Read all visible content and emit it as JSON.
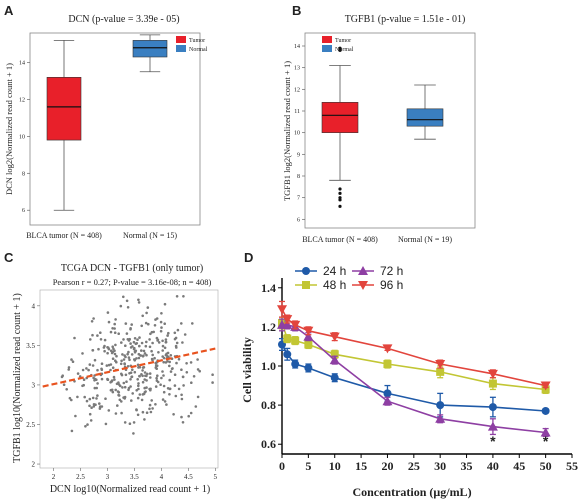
{
  "chart_data": [
    {
      "panel": "A",
      "type": "box",
      "title": "DCN (p-value = 3.39e - 05)",
      "ylabel": "DCN log2(Normalized read count + 1)",
      "categories": [
        "BLCA tumor (N = 408)",
        "Normal (N = 15)"
      ],
      "legend": [
        "Tumor",
        "Normal"
      ],
      "legend_position": "top-right",
      "yticks": [
        6,
        8,
        10,
        12,
        14
      ],
      "ylim": [
        5.2,
        15.6
      ],
      "colors": [
        "#e8202a",
        "#3a7fc1"
      ],
      "boxes": [
        {
          "min": 6.0,
          "q1": 9.8,
          "median": 11.6,
          "q3": 13.2,
          "max": 15.2
        },
        {
          "min": 13.5,
          "q1": 14.3,
          "median": 14.8,
          "q3": 15.2,
          "max": 15.5
        }
      ]
    },
    {
      "panel": "B",
      "type": "box",
      "title": "TGFB1 (p-value = 1.51e - 01)",
      "ylabel": "TGFB1 log2(Normalized read count + 1)",
      "categories": [
        "BLCA tumor (N = 408)",
        "Normal (N = 19)"
      ],
      "legend": [
        "Tumor",
        "Normal"
      ],
      "legend_position": "top-left",
      "yticks": [
        6,
        7,
        8,
        9,
        10,
        11,
        12,
        13,
        14
      ],
      "ylim": [
        5.6,
        14.6
      ],
      "colors": [
        "#e8202a",
        "#3a7fc1"
      ],
      "boxes": [
        {
          "min": 7.8,
          "q1": 10.0,
          "median": 10.8,
          "q3": 11.4,
          "max": 13.1,
          "outliers": [
            13.8,
            13.9,
            7.4,
            7.2,
            7.0,
            6.9,
            6.6
          ]
        },
        {
          "min": 9.7,
          "q1": 10.3,
          "median": 10.6,
          "q3": 11.1,
          "max": 12.2,
          "outliers": []
        }
      ]
    },
    {
      "panel": "C",
      "type": "scatter",
      "title": "TCGA DCN - TGFB1 (only tumor)",
      "subtitle": "Pearson r = 0.27; P-value = 3.16e-08; n = 408)",
      "xlabel": "DCN log10(Normalized read count + 1)",
      "ylabel": "TGFB1 log10(Normalized read count + 1)",
      "xticks": [
        "2",
        "2.5",
        "3",
        "3.5",
        "4",
        "4.5",
        "5"
      ],
      "yticks": [
        "2",
        "2.5",
        "3",
        "3.5",
        "4"
      ],
      "xlim": [
        1.75,
        5.05
      ],
      "ylim": [
        1.95,
        4.2
      ],
      "n_points": 408,
      "fit_line": {
        "x": [
          1.8,
          5.0
        ],
        "y": [
          2.98,
          3.46
        ],
        "color": "#e8531f"
      }
    },
    {
      "panel": "D",
      "type": "line",
      "xlabel": "Concentration (μg/mL)",
      "ylabel": "Cell viability",
      "x": [
        0,
        1,
        2.5,
        5,
        10,
        20,
        30,
        40,
        50
      ],
      "xticks": [
        "0",
        "5",
        "10",
        "15",
        "20",
        "25",
        "30",
        "35",
        "40",
        "45",
        "50",
        "55"
      ],
      "yticks": [
        "0.6",
        "0.8",
        "1.0",
        "1.2",
        "1.4"
      ],
      "xlim": [
        0,
        55
      ],
      "ylim": [
        0.55,
        1.45
      ],
      "legend_position": "top",
      "annotations": [
        {
          "x": 40,
          "text": "*"
        },
        {
          "x": 50,
          "text": "*"
        }
      ],
      "series": [
        {
          "name": "24 h",
          "color": "#1f5aa8",
          "marker": "circle",
          "values": [
            1.11,
            1.06,
            1.01,
            0.99,
            0.94,
            0.86,
            0.8,
            0.79,
            0.77
          ],
          "err": [
            0.03,
            0.03,
            0.02,
            0.02,
            0.02,
            0.04,
            0.06,
            0.05,
            0.01
          ]
        },
        {
          "name": "48 h",
          "color": "#c2c634",
          "marker": "square",
          "values": [
            1.22,
            1.14,
            1.13,
            1.11,
            1.06,
            1.01,
            0.97,
            0.91,
            0.88
          ],
          "err": [
            0.03,
            0.02,
            0.02,
            0.02,
            0.02,
            0.02,
            0.03,
            0.03,
            0.02
          ]
        },
        {
          "name": "72 h",
          "color": "#8e3fa3",
          "marker": "triangle-up",
          "values": [
            1.21,
            1.21,
            1.2,
            1.15,
            1.03,
            0.82,
            0.73,
            0.69,
            0.66
          ],
          "err": [
            0.03,
            0.02,
            0.02,
            0.02,
            0.02,
            0.02,
            0.02,
            0.04,
            0.02
          ]
        },
        {
          "name": "96 h",
          "color": "#e2453d",
          "marker": "triangle-down",
          "values": [
            1.29,
            1.24,
            1.21,
            1.18,
            1.15,
            1.09,
            1.01,
            0.96,
            0.9
          ],
          "err": [
            0.04,
            0.02,
            0.02,
            0.02,
            0.02,
            0.01,
            0.02,
            0.02,
            0.01
          ]
        }
      ]
    }
  ],
  "panel_labels": [
    "A",
    "B",
    "C",
    "D"
  ]
}
